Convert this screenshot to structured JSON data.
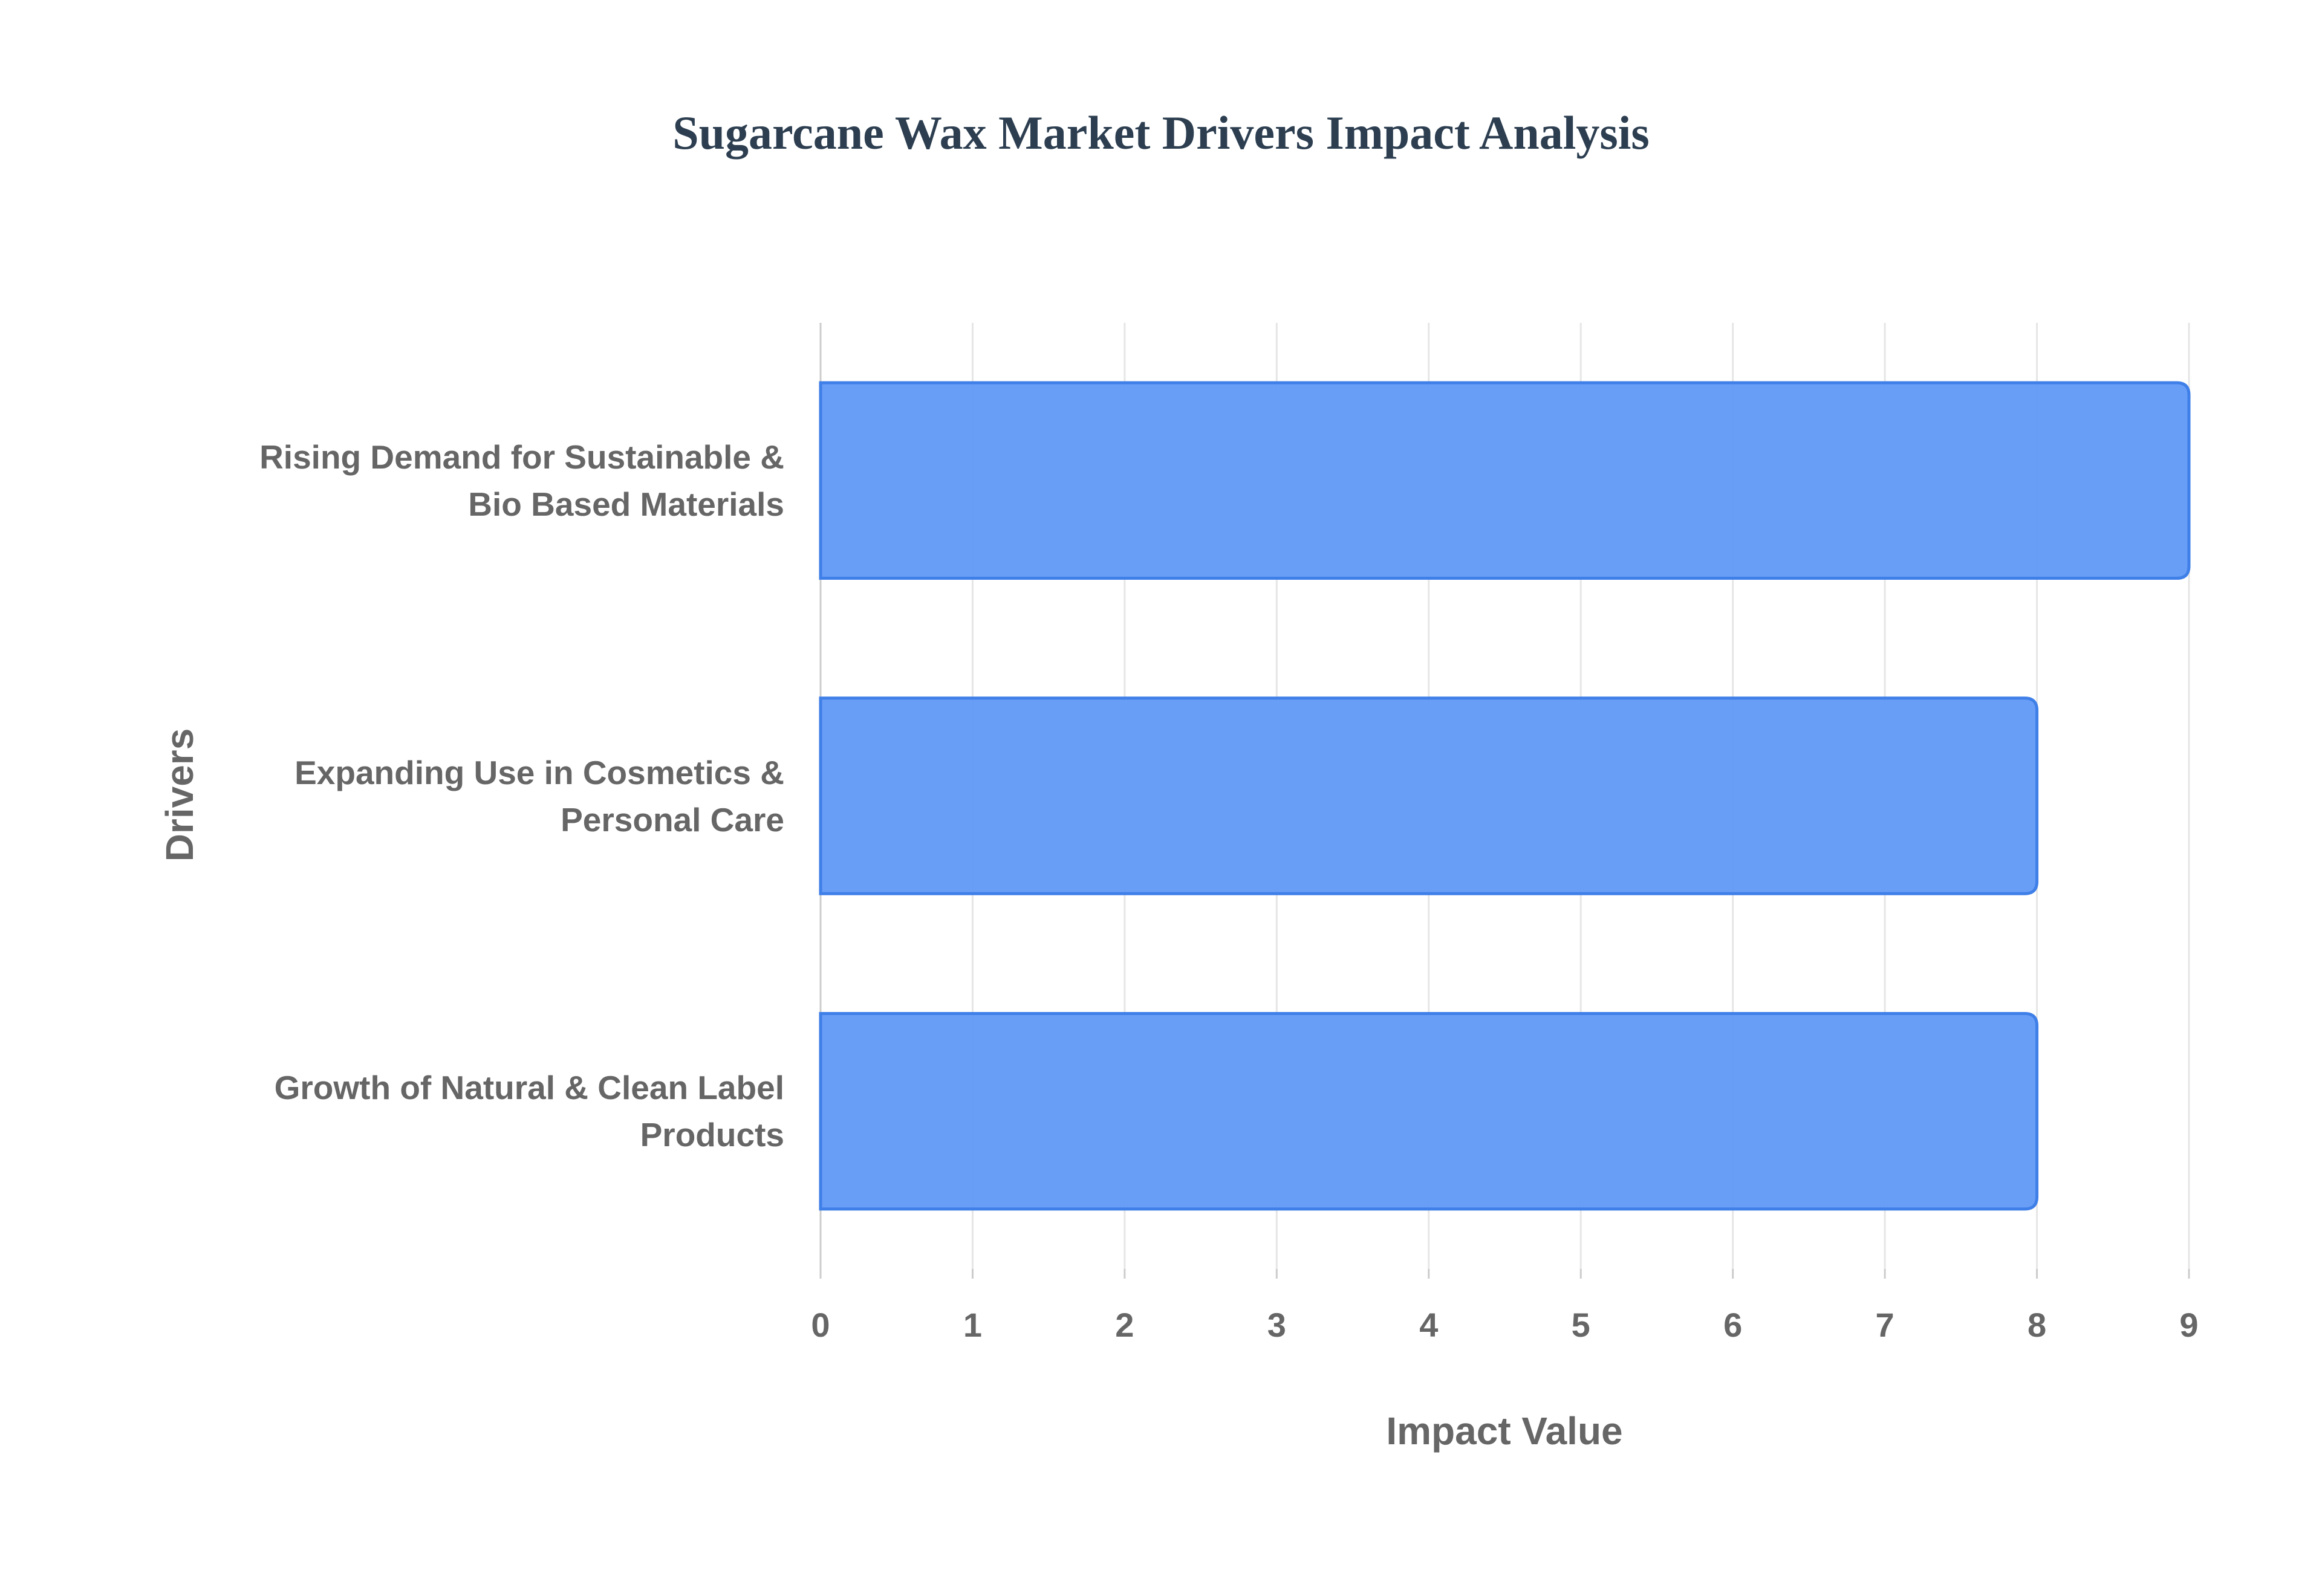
{
  "chart_data": {
    "type": "bar",
    "orientation": "horizontal",
    "title": "Sugarcane Wax Market Drivers Impact Analysis",
    "x_label": "Impact Value",
    "y_label": "Drivers",
    "categories": [
      "Rising Demand for Sustainable & Bio Based Materials",
      "Expanding Use in Cosmetics & Personal Care",
      "Growth of Natural & Clean Label Products"
    ],
    "values": [
      9,
      8,
      8
    ],
    "color": "#6199f5",
    "xlim": [
      0,
      9
    ],
    "xticks": [
      0,
      1,
      2,
      3,
      4,
      5,
      6,
      7,
      8,
      9
    ],
    "grid": true
  }
}
